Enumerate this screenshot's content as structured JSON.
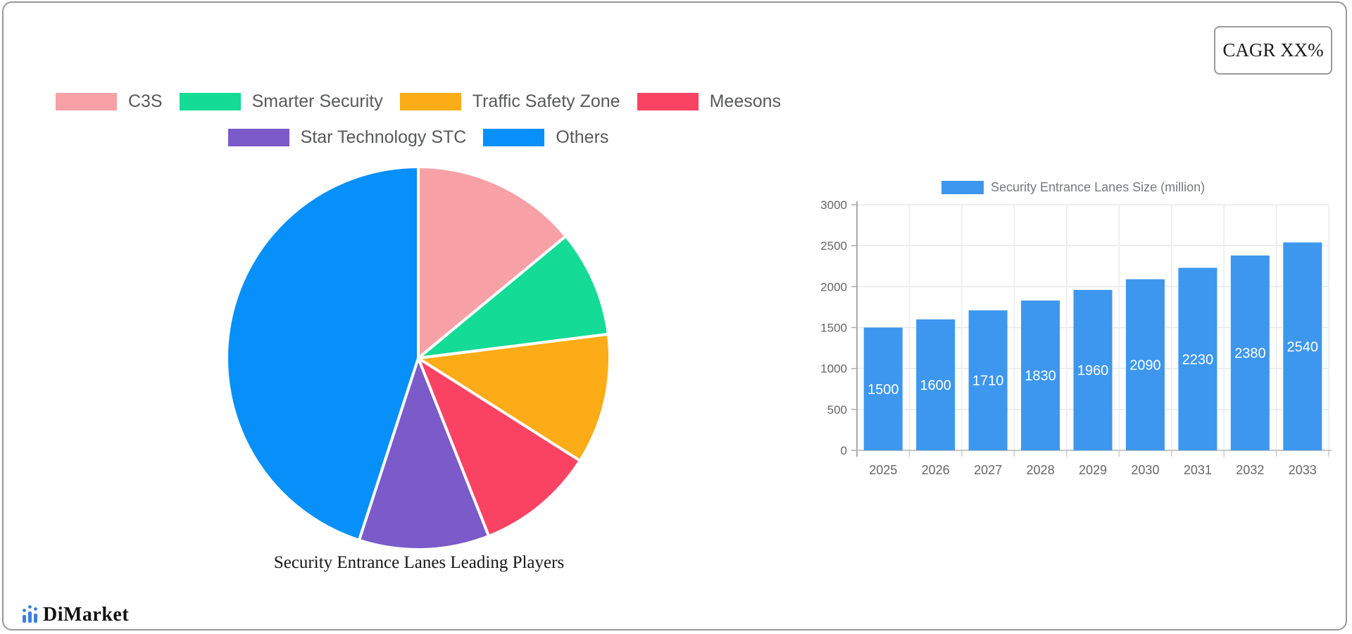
{
  "cagr": {
    "label": "CAGR XX%"
  },
  "logo": {
    "text": "DiMarket",
    "icon_color": "#3b7fe0"
  },
  "colors": {
    "card_border": "#999999",
    "legend_text": "#58595a",
    "axis_text": "#666666",
    "grid_line": "#e7e7e7",
    "axis_line": "#aaaaaa"
  },
  "chart_data": [
    {
      "type": "pie",
      "title": "Security Entrance Lanes Leading Players",
      "legend_position": "top",
      "direction": "clockwise",
      "start_angle_deg": 0,
      "value_note": "percent share, estimated from slice angles",
      "series": [
        {
          "name": "C3S",
          "value": 14,
          "color": "#F7A1A6"
        },
        {
          "name": "Smarter Security",
          "value": 9,
          "color": "#14DB95"
        },
        {
          "name": "Traffic Safety Zone",
          "value": 11,
          "color": "#FBAC16"
        },
        {
          "name": "Meesons",
          "value": 10,
          "color": "#FA4263"
        },
        {
          "name": "Star Technology STC",
          "value": 11,
          "color": "#7B5AC9"
        },
        {
          "name": "Others",
          "value": 45,
          "color": "#0790FA"
        }
      ]
    },
    {
      "type": "bar",
      "legend": "Security Entrance Lanes Size (million)",
      "categories": [
        "2025",
        "2026",
        "2027",
        "2028",
        "2029",
        "2030",
        "2031",
        "2032",
        "2033"
      ],
      "values": [
        1500,
        1600,
        1710,
        1830,
        1960,
        2090,
        2230,
        2380,
        2540
      ],
      "ylim": [
        0,
        3000
      ],
      "ytick_step": 500,
      "bar_color": "#3D97EF",
      "value_label_position": "inside-middle",
      "grid": true,
      "legend_position": "top"
    }
  ]
}
